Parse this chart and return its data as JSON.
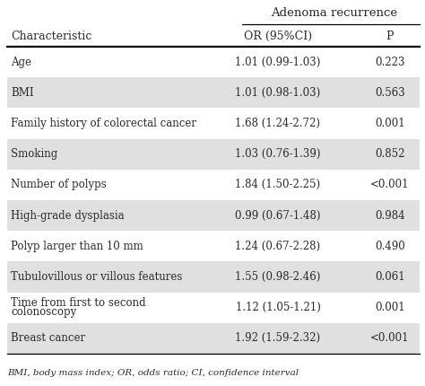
{
  "title": "Adenoma recurrence",
  "col_characteristic": "Characteristic",
  "col_or": "OR (95%CI)",
  "col_p": "P",
  "rows": [
    {
      "characteristic": "Age",
      "or": "1.01 (0.99-1.03)",
      "p": "0.223",
      "shaded": false
    },
    {
      "characteristic": "BMI",
      "or": "1.01 (0.98-1.03)",
      "p": "0.563",
      "shaded": true
    },
    {
      "characteristic": "Family history of colorectal cancer",
      "or": "1.68 (1.24-2.72)",
      "p": "0.001",
      "shaded": false
    },
    {
      "characteristic": "Smoking",
      "or": "1.03 (0.76-1.39)",
      "p": "0.852",
      "shaded": true
    },
    {
      "characteristic": "Number of polyps",
      "or": "1.84 (1.50-2.25)",
      "p": "<0.001",
      "shaded": false
    },
    {
      "characteristic": "High-grade dysplasia",
      "or": "0.99 (0.67-1.48)",
      "p": "0.984",
      "shaded": true
    },
    {
      "characteristic": "Polyp larger than 10 mm",
      "or": "1.24 (0.67-2.28)",
      "p": "0.490",
      "shaded": false
    },
    {
      "characteristic": "Tubulovillous or villous features",
      "or": "1.55 (0.98-2.46)",
      "p": "0.061",
      "shaded": true
    },
    {
      "characteristic": "Time from first to second\ncolonoscopy",
      "or": "1.12 (1.05-1.21)",
      "p": "0.001",
      "shaded": false
    },
    {
      "characteristic": "Breast cancer",
      "or": "1.92 (1.59-2.32)",
      "p": "<0.001",
      "shaded": true
    }
  ],
  "footnote": "BMI, body mass index; OR, odds ratio; CI, confidence interval",
  "shaded_color": "#e0e0e0",
  "white_color": "#ffffff",
  "line_color": "#000000",
  "text_color": "#2b2b2b",
  "font_size": 8.5,
  "header_font_size": 9.0,
  "title_font_size": 9.5,
  "footnote_font_size": 7.5
}
